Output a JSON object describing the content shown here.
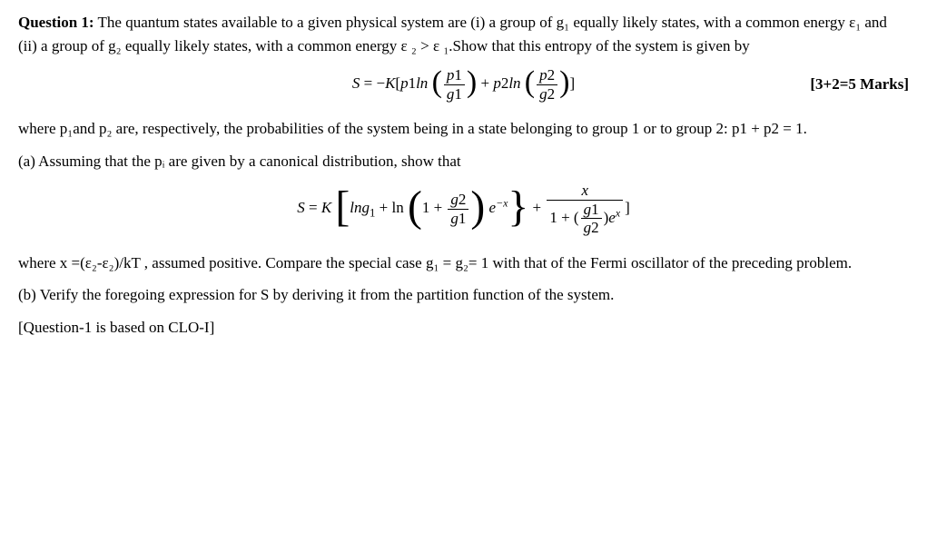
{
  "q1": {
    "title": "Question 1:",
    "intro": "The quantum states available to a given physical system are (i) a group of g₁ equally likely states, with a common energy ε₁ and (ii) a group of g₂ equally likely states, with a common energy ε ₂ > ε ₁.Show that this entropy of the system is given by",
    "eq1_label": "[3+2=5 Marks]",
    "where1": "where p₁and p₂ are, respectively, the probabilities of the system being in a state belonging to group 1 or to group 2: p1 + p2 = 1.",
    "partA": "(a) Assuming that the pᵢ are given by a canonical distribution, show that",
    "where2": "where x =(ε₂-ε₂)/kT , assumed positive. Compare the special case g₁ = g₂= 1 with that of the Fermi oscillator of the preceding problem.",
    "partB": "(b) Verify the foregoing expression for S by deriving it from the partition function of the system.",
    "clo": "[Question-1 is based on CLO-I]"
  }
}
